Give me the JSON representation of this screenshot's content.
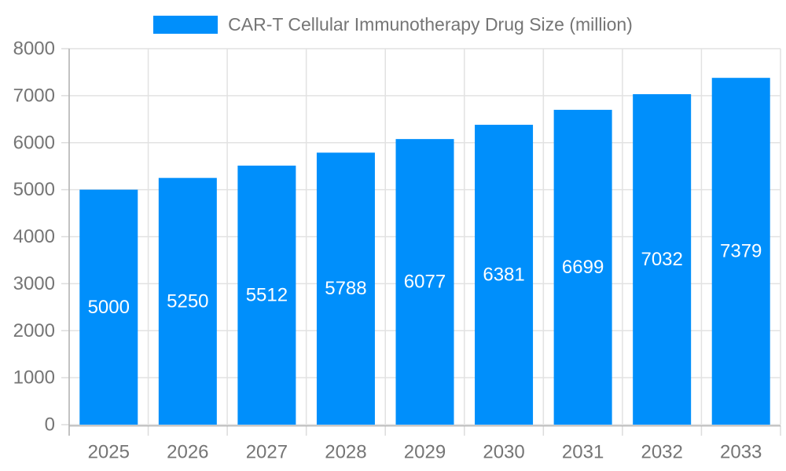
{
  "chart_data": {
    "type": "bar",
    "title": "CAR-T Cellular Immunotherapy Drug Size (million)",
    "categories": [
      "2025",
      "2026",
      "2027",
      "2028",
      "2029",
      "2030",
      "2031",
      "2032",
      "2033"
    ],
    "series": [
      {
        "name": "CAR-T Cellular Immunotherapy Drug Size (million)",
        "values": [
          5000,
          5250,
          5512,
          5788,
          6077,
          6381,
          6699,
          7032,
          7379
        ]
      }
    ],
    "value_labels_shown": true,
    "xlabel": "",
    "ylabel": "",
    "ylim": [
      0,
      8000
    ],
    "yticks": [
      0,
      1000,
      2000,
      3000,
      4000,
      5000,
      6000,
      7000,
      8000
    ],
    "grid": true,
    "legend_position": "top",
    "colors": {
      "bar": "#008FFB",
      "value_label": "#ffffff",
      "axis_label": "#757575",
      "legend_text": "#757575",
      "gridline": "#e2e2e2",
      "axis_line": "#b3b3b3",
      "tick_mark": "#dcdcdc"
    }
  }
}
